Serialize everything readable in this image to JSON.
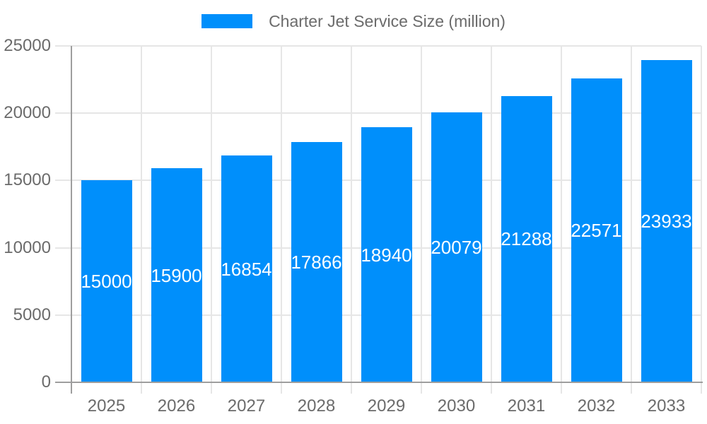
{
  "legend": {
    "label": "Charter Jet Service Size (million)"
  },
  "colors": {
    "bar": "#008FFB",
    "grid": "#e6e6e6",
    "axis": "#9e9e9e",
    "axis_text": "#6b6b6b",
    "value_text": "#ffffff",
    "background": "#ffffff"
  },
  "chart_data": {
    "type": "bar",
    "title": "Charter Jet Service Size (million)",
    "categories": [
      "2025",
      "2026",
      "2027",
      "2028",
      "2029",
      "2030",
      "2031",
      "2032",
      "2033"
    ],
    "values": [
      15000,
      15900,
      16854,
      17866,
      18940,
      20079,
      21288,
      22571,
      23933
    ],
    "series_name": "Charter Jet Service Size (million)",
    "xlabel": "",
    "ylabel": "",
    "ylim": [
      0,
      25000
    ],
    "yticks": [
      0,
      5000,
      10000,
      15000,
      20000,
      25000
    ],
    "grid": true,
    "legend_position": "top",
    "value_labels": "inside-center"
  }
}
